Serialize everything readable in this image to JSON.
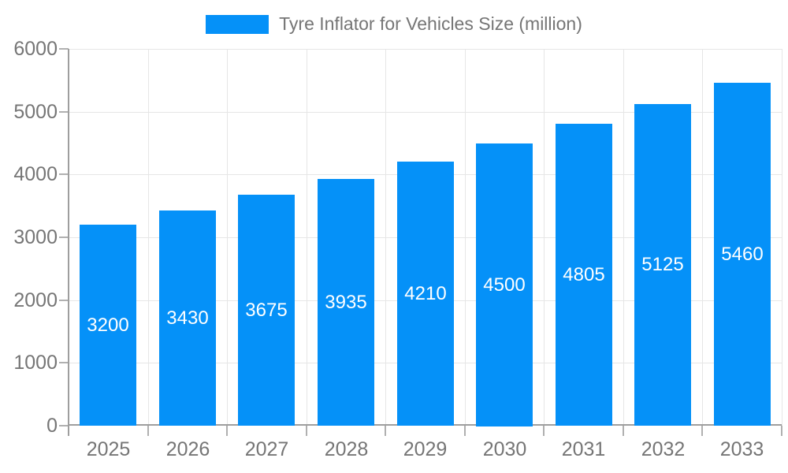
{
  "legend": {
    "label": "Tyre Inflator for Vehicles Size (million)"
  },
  "chart_data": {
    "type": "bar",
    "title": "Tyre Inflator for Vehicles Size (million)",
    "series_name": "Tyre Inflator for Vehicles Size (million)",
    "categories": [
      "2025",
      "2026",
      "2027",
      "2028",
      "2029",
      "2030",
      "2031",
      "2032",
      "2033"
    ],
    "values": [
      3200,
      3430,
      3675,
      3935,
      4210,
      4500,
      4805,
      5125,
      5460
    ],
    "xlabel": "",
    "ylabel": "",
    "ylim": [
      0,
      6000
    ],
    "y_ticks": [
      0,
      1000,
      2000,
      3000,
      4000,
      5000,
      6000
    ],
    "grid": true,
    "legend_position": "top-center",
    "bar_color": "#0591f8",
    "bar_label_color": "#ffffff",
    "axis_text_color": "#757575",
    "gridline_color": "#e6e6e6",
    "axis_line_color": "#9e9e9e",
    "background_color": "#ffffff"
  }
}
